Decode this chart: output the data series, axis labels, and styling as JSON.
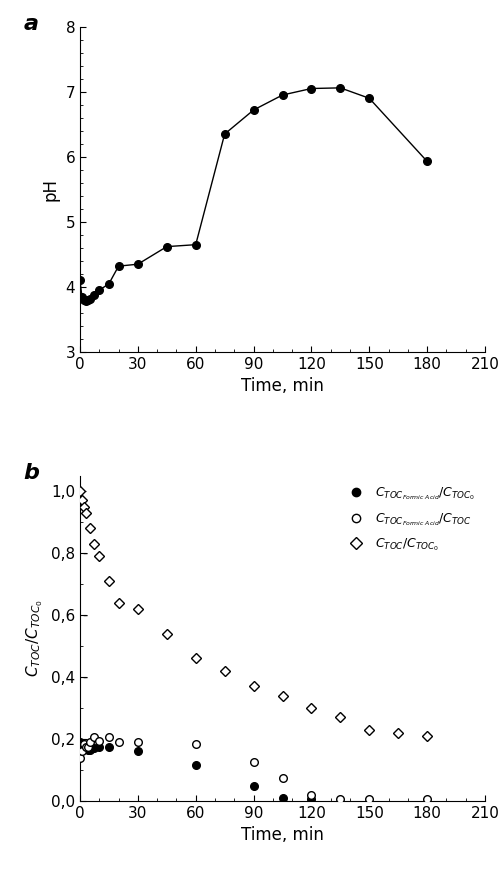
{
  "panel_a_label": "a",
  "panel_b_label": "b",
  "ph_time": [
    0,
    1,
    2,
    3,
    4,
    5,
    7,
    10,
    15,
    20,
    30,
    45,
    60,
    75,
    90,
    105,
    120,
    135,
    150,
    180
  ],
  "ph_values": [
    4.1,
    3.85,
    3.8,
    3.78,
    3.8,
    3.82,
    3.88,
    3.95,
    4.05,
    4.32,
    4.35,
    4.62,
    4.65,
    6.35,
    6.72,
    6.95,
    7.05,
    7.06,
    6.9,
    5.93
  ],
  "ph_xlabel": "Time, min",
  "ph_ylabel": "pH",
  "ph_xlim": [
    0,
    210
  ],
  "ph_ylim": [
    3,
    8
  ],
  "ph_xticks": [
    0,
    30,
    60,
    90,
    120,
    150,
    180,
    210
  ],
  "ph_yticks": [
    3,
    4,
    5,
    6,
    7,
    8
  ],
  "ph_yticklabels": [
    "3",
    "4",
    "5",
    "6",
    "7",
    "8"
  ],
  "toc_time_filled": [
    0,
    2,
    4,
    5,
    7,
    10,
    15,
    30,
    60,
    90,
    105,
    120
  ],
  "toc_filled": [
    0.19,
    0.18,
    0.165,
    0.165,
    0.17,
    0.175,
    0.175,
    0.16,
    0.115,
    0.05,
    0.01,
    0.005
  ],
  "toc_time_open": [
    0,
    1,
    2,
    3,
    4,
    5,
    7,
    10,
    15,
    20,
    30,
    60,
    90,
    105,
    120,
    135,
    150,
    180
  ],
  "toc_open": [
    0.14,
    0.16,
    0.185,
    0.175,
    0.175,
    0.19,
    0.205,
    0.195,
    0.205,
    0.19,
    0.19,
    0.185,
    0.125,
    0.075,
    0.02,
    0.005,
    0.005,
    0.005
  ],
  "toc_time_diamond": [
    0,
    1,
    2,
    3,
    5,
    7,
    10,
    15,
    20,
    30,
    45,
    60,
    75,
    90,
    105,
    120,
    135,
    150,
    165,
    180
  ],
  "toc_diamond": [
    1.0,
    0.97,
    0.95,
    0.93,
    0.88,
    0.83,
    0.79,
    0.71,
    0.64,
    0.62,
    0.54,
    0.46,
    0.42,
    0.37,
    0.34,
    0.3,
    0.27,
    0.23,
    0.22,
    0.21
  ],
  "b_xlabel": "Time, min",
  "b_xlim": [
    0,
    210
  ],
  "b_ylim": [
    0,
    1.05
  ],
  "b_xticks": [
    0,
    30,
    60,
    90,
    120,
    150,
    180,
    210
  ],
  "b_yticks": [
    0.0,
    0.2,
    0.4,
    0.6,
    0.8,
    1.0
  ],
  "b_yticklabels": [
    "0,0",
    "0,2",
    "0,4",
    "0,6",
    "0,8",
    "1,0"
  ],
  "background_color": "#ffffff",
  "line_color": "#000000",
  "marker_color": "#000000"
}
